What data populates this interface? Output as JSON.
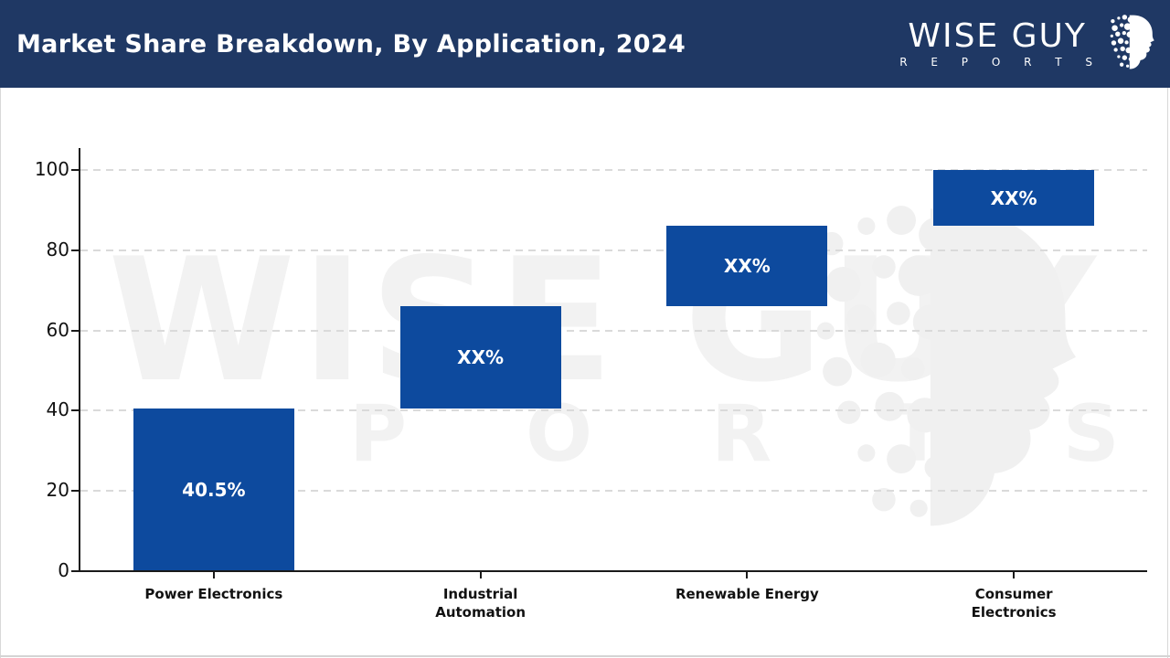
{
  "header": {
    "title": "Market Share Breakdown, By Application, 2024",
    "logo": {
      "line1": "WISE GUY",
      "line2": "R E P O R T S"
    }
  },
  "watermark": {
    "line1": "WISE GUY",
    "line2": "P O R T S"
  },
  "colors": {
    "header_bg": "#1f3864",
    "bar": "#0d4a9e",
    "bar_label": "#ffffff",
    "grid": "#dadada",
    "axis": "#1a1a1a",
    "text": "#111111",
    "watermark": "#f2f2f2",
    "border": "#d8d8d8"
  },
  "chart_data": {
    "type": "bar",
    "subtype": "floating-waterfall",
    "title": "Market Share Breakdown, By Application, 2024",
    "categories": [
      "Power Electronics",
      "Industrial\nAutomation",
      "Renewable Energy",
      "Consumer\nElectronics"
    ],
    "bars": [
      {
        "category": "Power Electronics",
        "start": 0,
        "end": 40.5,
        "label": "40.5%"
      },
      {
        "category": "Industrial Automation",
        "start": 40.5,
        "end": 66,
        "label": "XX%"
      },
      {
        "category": "Renewable Energy",
        "start": 66,
        "end": 86,
        "label": "XX%"
      },
      {
        "category": "Consumer Electronics",
        "start": 86,
        "end": 100,
        "label": "XX%"
      }
    ],
    "yticks": [
      0,
      20,
      40,
      60,
      80,
      100
    ],
    "ytick_labels": [
      "0",
      "20",
      "40",
      "60",
      "80",
      "100"
    ],
    "ylim": [
      0,
      106
    ],
    "xlabel": "",
    "ylabel": "",
    "grid": "dashed-horizontal",
    "legend": "none"
  }
}
